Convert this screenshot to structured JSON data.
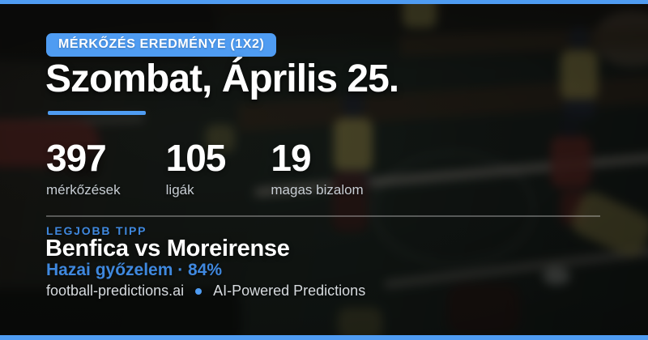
{
  "colors": {
    "accent": "#4f9cf2",
    "linkBlue": "#3f88de",
    "titleWhite": "#ffffff",
    "labelGray": "#c7cdd3",
    "footerGray": "#d6dade"
  },
  "badge": {
    "label": "MÉRKŐZÉS EREDMÉNYE (1X2)"
  },
  "header": {
    "title": "Szombat, Április 25."
  },
  "stats": [
    {
      "value": "397",
      "label": "mérkőzések"
    },
    {
      "value": "105",
      "label": "ligák"
    },
    {
      "value": "19",
      "label": "magas bizalom"
    }
  ],
  "best_tip": {
    "eyebrow": "LEGJOBB TIPP",
    "match": "Benfica vs Moreirense",
    "prediction": "Hazai győzelem · 84%"
  },
  "footer": {
    "site": "football-predictions.ai",
    "separator_icon": "blue-dot",
    "tagline": "AI-Powered Predictions"
  }
}
